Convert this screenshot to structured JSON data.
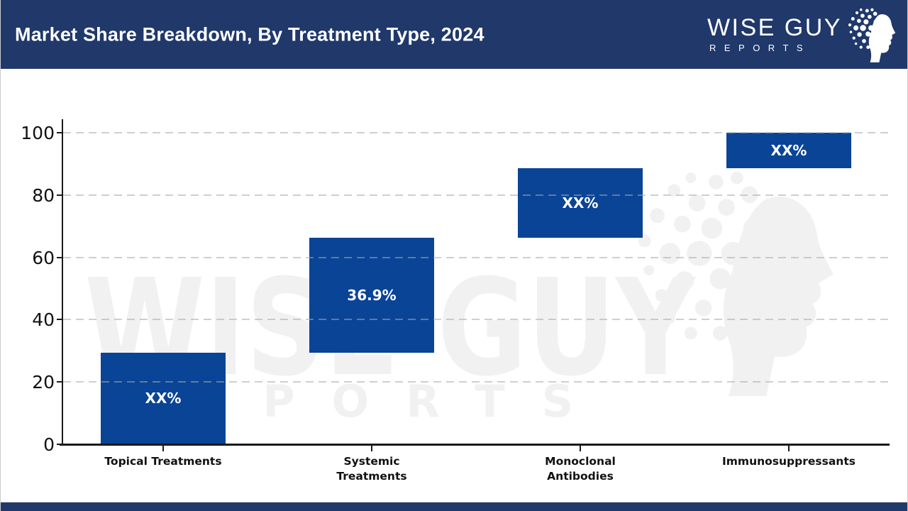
{
  "header": {
    "title": "Market Share Breakdown, By Treatment Type, 2024",
    "logo": {
      "line1": "WISE GUY",
      "line2": "REPORTS"
    }
  },
  "watermark": {
    "line1": "WISE GUY",
    "line2": "REPORTS"
  },
  "chart_data": {
    "type": "bar",
    "subtype": "waterfall-floating-segments",
    "title": "Market Share Breakdown, By Treatment Type, 2024",
    "categories": [
      "Topical Treatments",
      "Systemic Treatments",
      "Monoclonal Antibodies",
      "Immunosuppressants"
    ],
    "categories_display": [
      [
        "Topical Treatments"
      ],
      [
        "Systemic",
        "Treatments"
      ],
      [
        "Monoclonal",
        "Antibodies"
      ],
      [
        "Immunosuppressants"
      ]
    ],
    "series": [
      {
        "name": "Topical Treatments",
        "start": 0,
        "end": 29.4,
        "value": 29.4,
        "label": "XX%"
      },
      {
        "name": "Systemic Treatments",
        "start": 29.4,
        "end": 66.3,
        "value": 36.9,
        "label": "36.9%"
      },
      {
        "name": "Monoclonal Antibodies",
        "start": 66.3,
        "end": 88.5,
        "value": 22.2,
        "label": "XX%"
      },
      {
        "name": "Immunosuppressants",
        "start": 88.5,
        "end": 100,
        "value": 11.5,
        "label": "XX%"
      }
    ],
    "xlabel": "",
    "ylabel": "",
    "yticks": [
      0,
      20,
      40,
      60,
      80,
      100
    ],
    "ylim": [
      0,
      104
    ],
    "grid": "horizontal dashed",
    "legend": "none",
    "colors": {
      "bar": "#0a4496",
      "header_navy": "#20386a",
      "grid": "#d9d9d9",
      "axis": "#1a1a1a",
      "bar_label": "#ffffff",
      "watermark": "#f1f1f2"
    }
  }
}
